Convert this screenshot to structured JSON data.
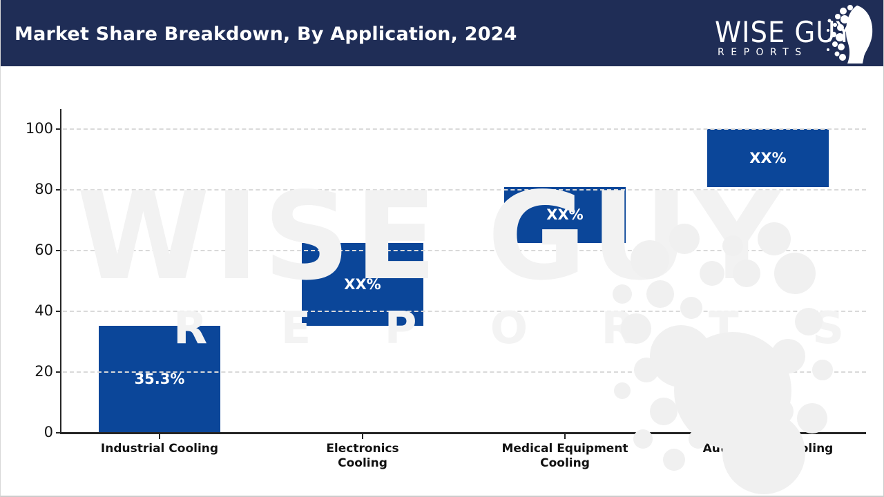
{
  "header": {
    "title": "Market Share Breakdown, By Application, 2024",
    "logo": {
      "line1": "WISE GUY",
      "line2": "REPORTS",
      "icon": "wiseguy-face-icon"
    }
  },
  "watermark": {
    "line1": "WISE GUY",
    "line2": "R E P O R T S"
  },
  "colors": {
    "header_bg": "#1f2d56",
    "bar_fill": "#0b4699",
    "bar_label_text": "#ffffff",
    "axis_line": "#262626",
    "tick_text": "#141414",
    "gridline": "#d9d9d9",
    "watermark_gray": "#f2f2f2",
    "page_bg": "#ffffff"
  },
  "chart_data": {
    "type": "bar",
    "subtype": "waterfall (floating cumulative segments)",
    "title": "Market Share Breakdown, By Application, 2024",
    "categories": [
      "Industrial Cooling",
      "Electronics Cooling",
      "Medical Equipment Cooling",
      "Automotive Cooling"
    ],
    "categories_display": [
      "Industrial Cooling",
      "Electronics\nCooling",
      "Medical Equipment\nCooling",
      "Automotive Cooling"
    ],
    "segments": [
      {
        "category": "Industrial Cooling",
        "start": 0,
        "end": 35.3,
        "label": "35.3%"
      },
      {
        "category": "Electronics Cooling",
        "start": 35.3,
        "end": 62.5,
        "label": "XX%"
      },
      {
        "category": "Medical Equipment Cooling",
        "start": 62.5,
        "end": 81,
        "label": "XX%"
      },
      {
        "category": "Automotive Cooling",
        "start": 81,
        "end": 100,
        "label": "XX%"
      }
    ],
    "yticks": [
      0,
      20,
      40,
      60,
      80,
      100
    ],
    "ylim": [
      0,
      106
    ],
    "xlabel": "",
    "ylabel": "",
    "grid": "horizontal dashed, drawn above bars",
    "legend": "none",
    "bar_color": "#0b4699"
  }
}
